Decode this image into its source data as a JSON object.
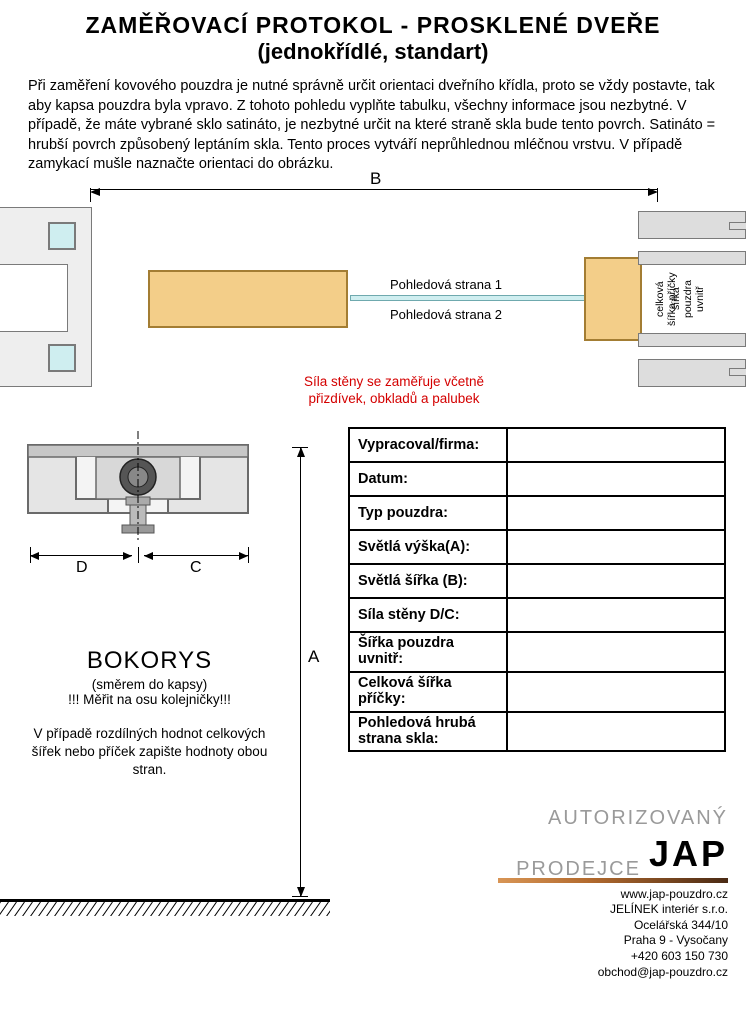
{
  "title": "ZAMĚŘOVACÍ PROTOKOL - PROSKLENÉ DVEŘE",
  "subtitle": "(jednokřídlé, standart)",
  "intro": "Při zaměření kovového pouzdra je nutné správně určit orientaci dveřního křídla, proto se vždy postavte, tak aby kapsa pouzdra byla vpravo. Z tohoto pohledu vyplňte tabulku, všechny informace jsou nezbytné. V případě, že máte vybrané sklo satináto, je nezbytné určit na které straně skla bude tento povrch. Satináto = hrubší povrch způsobený leptáním skla. Tento proces vytváří neprůhlednou mléčnou vrstvu. V případě zamykací mušle naznačte orientaci do obrázku.",
  "dims": {
    "b": "B",
    "d": "D",
    "c": "C",
    "a": "A"
  },
  "side1": "Pohledová strana 1",
  "side2": "Pohledová strana 2",
  "redNote1": "Síla stěny se zaměřuje včetně",
  "redNote2": "přizdívek, obkladů a palubek",
  "vlabel1a": "celková",
  "vlabel1b": "šířka příčky",
  "vlabel2a": "šířka",
  "vlabel2b": "pouzdra uvnitř",
  "bokorys": {
    "heading": "BOKORYS",
    "sub1": "(směrem do kapsy)",
    "sub2": "!!! Měřit na osu kolejničky!!!",
    "para": "V případě rozdílných hodnot celkových šířek nebo příček zapište hodnoty obou stran."
  },
  "formRows": [
    "Vypracoval/firma:",
    "Datum:",
    "Typ pouzdra:",
    "Světlá výška(A):",
    "Světlá šířka (B):",
    "Síla stěny D/C:",
    "Šířka pouzdra uvnitř:",
    "Celková šířka příčky:",
    "Pohledová hrubá strana skla:"
  ],
  "footer": {
    "aut": "AUTORIZOVANÝ",
    "prod": "PRODEJCE",
    "logo": "JAP",
    "web": "www.jap-pouzdro.cz",
    "company": "JELÍNEK interiér s.r.o.",
    "street": "Ocelářská 344/10",
    "city": "Praha 9 - Vysočany",
    "phone": "+420 603 150 730",
    "email": "obchod@jap-pouzdro.cz"
  },
  "colors": {
    "wood": "#f3ce89",
    "woodBorder": "#a37d33",
    "glass": "#cfeef0",
    "grey": "#dddddd",
    "greyBorder": "#7a7a7a",
    "red": "#d40000"
  }
}
